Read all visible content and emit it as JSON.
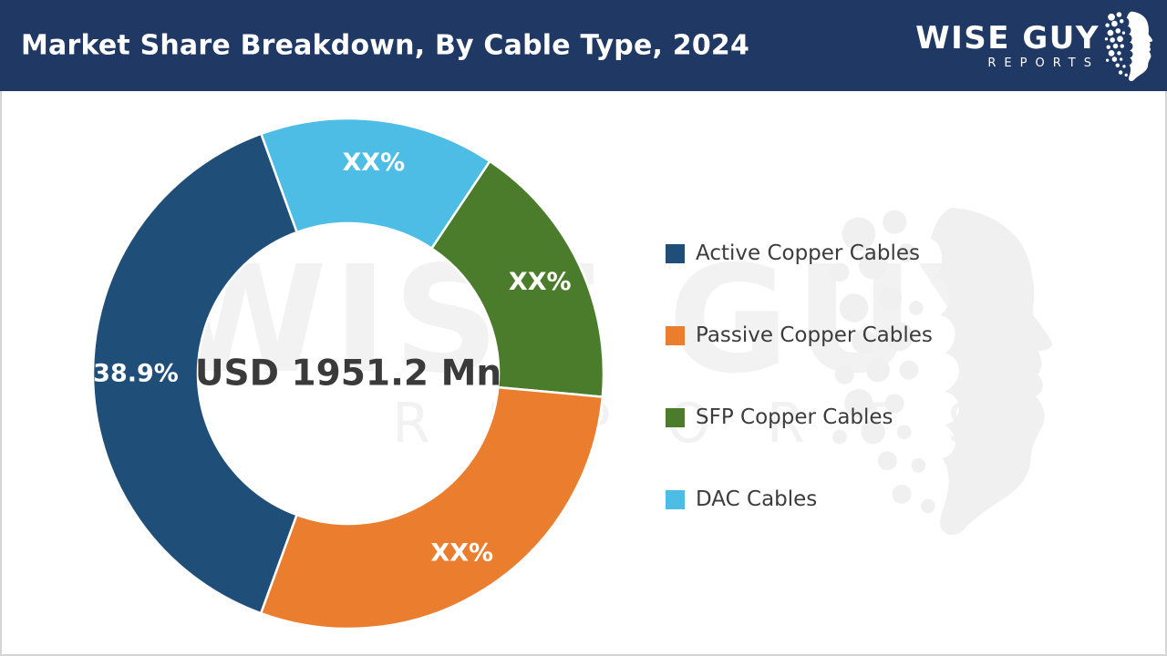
{
  "header": {
    "title": "Market Share Breakdown, By Cable Type, 2024",
    "logo": {
      "line1": "WISE GUY",
      "line2": "REPORTS"
    }
  },
  "watermark": {
    "line1": "WISE GUY",
    "line2": "REPORTS"
  },
  "chart_data": {
    "type": "pie",
    "subtype": "donut",
    "title": "Market Share Breakdown, By Cable Type, 2024",
    "center_label": "USD 1951.2 Mn",
    "units": "percent",
    "start_angle_deg_clockwise_from_top": 200,
    "segments": [
      {
        "name": "Active Copper Cables",
        "value_pct": 38.9,
        "label": "38.9%",
        "color": "#1F4E79"
      },
      {
        "name": "DAC Cables",
        "value_pct": 14.9,
        "label": "XX%",
        "color": "#4EBDE5"
      },
      {
        "name": "SFP Copper Cables",
        "value_pct": 17.1,
        "label": "XX%",
        "color": "#4A7C2B"
      },
      {
        "name": "Passive Copper Cables",
        "value_pct": 29.1,
        "label": "XX%",
        "color": "#EB7D2F"
      }
    ],
    "legend": [
      {
        "label": "Active Copper Cables",
        "color": "#1F4E79"
      },
      {
        "label": "Passive Copper Cables",
        "color": "#EB7D2F"
      },
      {
        "label": "SFP Copper Cables",
        "color": "#4A7C2B"
      },
      {
        "label": "DAC Cables",
        "color": "#4EBDE5"
      }
    ],
    "legend_position": "right"
  },
  "colors": {
    "header_bar": "#1F3864",
    "title_text": "#FFFFFF",
    "center_text": "#3A3A3A",
    "legend_text": "#3C3C3C",
    "watermark": "#F2F2F2",
    "border": "#D5D5D5",
    "segment_separator": "#FFFFFF"
  }
}
